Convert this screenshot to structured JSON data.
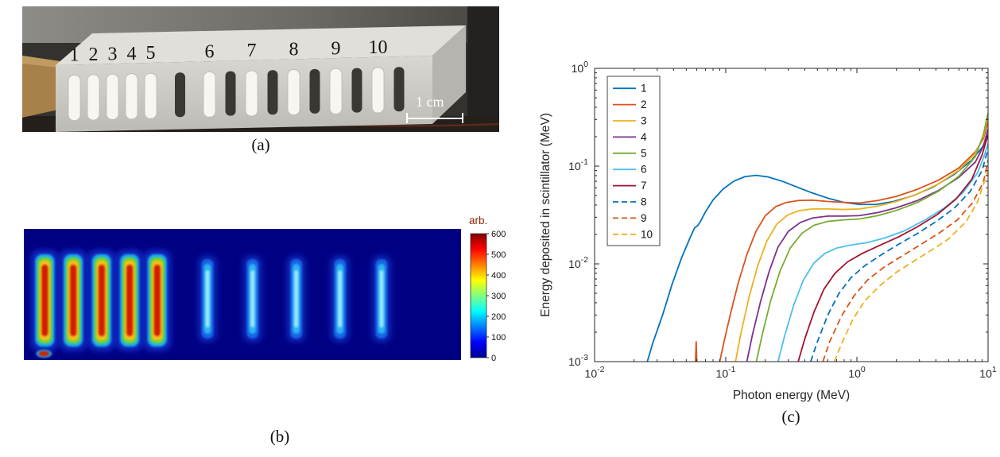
{
  "figure": {
    "captions": {
      "a": "(a)",
      "b": "(b)",
      "c": "(c)"
    }
  },
  "panel_a": {
    "slot_numbers": [
      "1",
      "2",
      "3",
      "4",
      "5",
      "6",
      "7",
      "8",
      "9",
      "10"
    ],
    "scale_bar_label": "1 cm"
  },
  "panel_b": {
    "colorbar": {
      "title": "arb.",
      "title_color": "#8b2500",
      "tick_labels": [
        "600",
        "500",
        "400",
        "300",
        "200",
        "100",
        "0"
      ],
      "tick_values": [
        600,
        500,
        400,
        300,
        200,
        100,
        0
      ],
      "max_value": 600,
      "colormap": "jet"
    },
    "bars": [
      {
        "x": 0.048,
        "peak": 600
      },
      {
        "x": 0.113,
        "peak": 600
      },
      {
        "x": 0.178,
        "peak": 580
      },
      {
        "x": 0.242,
        "peak": 570
      },
      {
        "x": 0.305,
        "peak": 550
      },
      {
        "x": 0.42,
        "peak": 250
      },
      {
        "x": 0.523,
        "peak": 240
      },
      {
        "x": 0.623,
        "peak": 230
      },
      {
        "x": 0.723,
        "peak": 220
      },
      {
        "x": 0.818,
        "peak": 210
      }
    ]
  },
  "chart_data": {
    "type": "line",
    "title": "",
    "xlabel": "Photon energy (MeV)",
    "ylabel": "Energy deposited in scintillator (MeV)",
    "xscale": "log",
    "yscale": "log",
    "xlim": [
      0.01,
      10
    ],
    "ylim": [
      0.001,
      1
    ],
    "x_tick_exponents": [
      -2,
      -1,
      0,
      1
    ],
    "y_tick_exponents": [
      -3,
      -2,
      -1,
      0
    ],
    "grid": false,
    "legend_position": "northwest",
    "series": [
      {
        "name": "1",
        "color": "#0072BD",
        "style": "solid",
        "points": [
          [
            0.024,
            0.0008
          ],
          [
            0.028,
            0.0016
          ],
          [
            0.033,
            0.003
          ],
          [
            0.039,
            0.0062
          ],
          [
            0.046,
            0.0115
          ],
          [
            0.053,
            0.018
          ],
          [
            0.058,
            0.0235
          ],
          [
            0.061,
            0.0245
          ],
          [
            0.064,
            0.027
          ],
          [
            0.07,
            0.034
          ],
          [
            0.08,
            0.045
          ],
          [
            0.095,
            0.058
          ],
          [
            0.115,
            0.07
          ],
          [
            0.14,
            0.078
          ],
          [
            0.17,
            0.0805
          ],
          [
            0.21,
            0.0775
          ],
          [
            0.27,
            0.07
          ],
          [
            0.35,
            0.061
          ],
          [
            0.45,
            0.0535
          ],
          [
            0.6,
            0.047
          ],
          [
            0.8,
            0.0425
          ],
          [
            1.05,
            0.0405
          ],
          [
            1.4,
            0.0405
          ],
          [
            1.9,
            0.0435
          ],
          [
            2.7,
            0.05
          ],
          [
            3.8,
            0.061
          ],
          [
            5.5,
            0.082
          ],
          [
            7.5,
            0.115
          ],
          [
            9.0,
            0.155
          ],
          [
            10,
            0.2
          ]
        ]
      },
      {
        "name": "2",
        "color": "#D95319",
        "style": "solid",
        "points": [
          [
            0.0565,
            0.0002
          ],
          [
            0.0595,
            0.0016
          ],
          [
            0.0625,
            0.0002
          ],
          [
            0.085,
            0.0007
          ],
          [
            0.097,
            0.0016
          ],
          [
            0.11,
            0.0033
          ],
          [
            0.125,
            0.0065
          ],
          [
            0.145,
            0.0125
          ],
          [
            0.17,
            0.0215
          ],
          [
            0.2,
            0.031
          ],
          [
            0.24,
            0.0385
          ],
          [
            0.29,
            0.0425
          ],
          [
            0.36,
            0.0445
          ],
          [
            0.46,
            0.0448
          ],
          [
            0.6,
            0.0435
          ],
          [
            0.8,
            0.0425
          ],
          [
            1.05,
            0.042
          ],
          [
            1.45,
            0.0445
          ],
          [
            2.0,
            0.049
          ],
          [
            2.9,
            0.058
          ],
          [
            4.2,
            0.072
          ],
          [
            6.0,
            0.096
          ],
          [
            8.0,
            0.14
          ],
          [
            9.2,
            0.19
          ],
          [
            10,
            0.28
          ]
        ]
      },
      {
        "name": "3",
        "color": "#EDB120",
        "style": "solid",
        "points": [
          [
            0.115,
            0.0008
          ],
          [
            0.13,
            0.0019
          ],
          [
            0.15,
            0.0045
          ],
          [
            0.175,
            0.0095
          ],
          [
            0.205,
            0.017
          ],
          [
            0.245,
            0.0255
          ],
          [
            0.295,
            0.0315
          ],
          [
            0.36,
            0.035
          ],
          [
            0.46,
            0.0365
          ],
          [
            0.6,
            0.0365
          ],
          [
            0.8,
            0.036
          ],
          [
            1.05,
            0.0365
          ],
          [
            1.45,
            0.039
          ],
          [
            2.0,
            0.0435
          ],
          [
            2.9,
            0.052
          ],
          [
            4.2,
            0.066
          ],
          [
            6.0,
            0.091
          ],
          [
            8.0,
            0.135
          ],
          [
            9.2,
            0.2
          ],
          [
            10,
            0.32
          ]
        ]
      },
      {
        "name": "4",
        "color": "#7E2F8E",
        "style": "solid",
        "points": [
          [
            0.14,
            0.0008
          ],
          [
            0.16,
            0.0019
          ],
          [
            0.185,
            0.0042
          ],
          [
            0.215,
            0.0085
          ],
          [
            0.25,
            0.0148
          ],
          [
            0.3,
            0.0215
          ],
          [
            0.37,
            0.0265
          ],
          [
            0.46,
            0.0295
          ],
          [
            0.6,
            0.0308
          ],
          [
            0.8,
            0.0308
          ],
          [
            1.05,
            0.0312
          ],
          [
            1.45,
            0.0335
          ],
          [
            2.0,
            0.0375
          ],
          [
            2.9,
            0.0445
          ],
          [
            4.2,
            0.0565
          ],
          [
            6.0,
            0.077
          ],
          [
            8.0,
            0.11
          ],
          [
            9.2,
            0.16
          ],
          [
            10,
            0.24
          ]
        ]
      },
      {
        "name": "5",
        "color": "#77AC30",
        "style": "solid",
        "points": [
          [
            0.165,
            0.0008
          ],
          [
            0.19,
            0.0019
          ],
          [
            0.22,
            0.0042
          ],
          [
            0.26,
            0.0085
          ],
          [
            0.31,
            0.0145
          ],
          [
            0.38,
            0.0205
          ],
          [
            0.47,
            0.0248
          ],
          [
            0.6,
            0.0272
          ],
          [
            0.8,
            0.0282
          ],
          [
            1.05,
            0.0288
          ],
          [
            1.45,
            0.0312
          ],
          [
            2.0,
            0.0352
          ],
          [
            2.9,
            0.0425
          ],
          [
            4.2,
            0.0555
          ],
          [
            6.0,
            0.079
          ],
          [
            8.0,
            0.125
          ],
          [
            9.2,
            0.21
          ],
          [
            10,
            0.35
          ]
        ]
      },
      {
        "name": "6",
        "color": "#4DBEEE",
        "style": "solid",
        "points": [
          [
            0.24,
            0.0008
          ],
          [
            0.28,
            0.0018
          ],
          [
            0.33,
            0.0038
          ],
          [
            0.39,
            0.0068
          ],
          [
            0.47,
            0.0102
          ],
          [
            0.57,
            0.0128
          ],
          [
            0.7,
            0.0145
          ],
          [
            0.9,
            0.0156
          ],
          [
            1.2,
            0.0165
          ],
          [
            1.65,
            0.0185
          ],
          [
            2.3,
            0.0218
          ],
          [
            3.2,
            0.0275
          ],
          [
            4.6,
            0.037
          ],
          [
            6.4,
            0.053
          ],
          [
            8.3,
            0.085
          ],
          [
            9.3,
            0.125
          ],
          [
            10,
            0.17
          ]
        ]
      },
      {
        "name": "7",
        "color": "#A2142F",
        "style": "solid",
        "points": [
          [
            0.34,
            0.0008
          ],
          [
            0.4,
            0.0017
          ],
          [
            0.47,
            0.0032
          ],
          [
            0.56,
            0.0055
          ],
          [
            0.68,
            0.008
          ],
          [
            0.85,
            0.0105
          ],
          [
            1.1,
            0.0128
          ],
          [
            1.5,
            0.0155
          ],
          [
            2.1,
            0.019
          ],
          [
            2.9,
            0.024
          ],
          [
            4.1,
            0.032
          ],
          [
            5.7,
            0.046
          ],
          [
            7.5,
            0.073
          ],
          [
            9.0,
            0.13
          ],
          [
            10,
            0.21
          ]
        ]
      },
      {
        "name": "8",
        "color": "#0072BD",
        "style": "dashed",
        "points": [
          [
            0.42,
            0.0008
          ],
          [
            0.5,
            0.0016
          ],
          [
            0.6,
            0.003
          ],
          [
            0.73,
            0.005
          ],
          [
            0.9,
            0.0072
          ],
          [
            1.15,
            0.0096
          ],
          [
            1.55,
            0.0125
          ],
          [
            2.1,
            0.016
          ],
          [
            2.9,
            0.0205
          ],
          [
            4.0,
            0.027
          ],
          [
            5.5,
            0.037
          ],
          [
            7.3,
            0.055
          ],
          [
            9.0,
            0.09
          ],
          [
            10,
            0.15
          ]
        ]
      },
      {
        "name": "9",
        "color": "#D95319",
        "style": "dashed",
        "points": [
          [
            0.52,
            0.0008
          ],
          [
            0.62,
            0.0016
          ],
          [
            0.76,
            0.0029
          ],
          [
            0.95,
            0.0047
          ],
          [
            1.2,
            0.0068
          ],
          [
            1.6,
            0.0092
          ],
          [
            2.2,
            0.012
          ],
          [
            3.0,
            0.0155
          ],
          [
            4.2,
            0.0205
          ],
          [
            5.8,
            0.028
          ],
          [
            7.6,
            0.042
          ],
          [
            9.2,
            0.068
          ],
          [
            10,
            0.115
          ]
        ]
      },
      {
        "name": "10",
        "color": "#EDB120",
        "style": "dashed",
        "points": [
          [
            0.63,
            0.0008
          ],
          [
            0.76,
            0.0015
          ],
          [
            0.93,
            0.0027
          ],
          [
            1.15,
            0.0042
          ],
          [
            1.5,
            0.006
          ],
          [
            2.0,
            0.0082
          ],
          [
            2.7,
            0.0106
          ],
          [
            3.7,
            0.0138
          ],
          [
            5.0,
            0.018
          ],
          [
            6.8,
            0.027
          ],
          [
            8.3,
            0.043
          ],
          [
            10,
            0.09
          ]
        ]
      }
    ]
  }
}
